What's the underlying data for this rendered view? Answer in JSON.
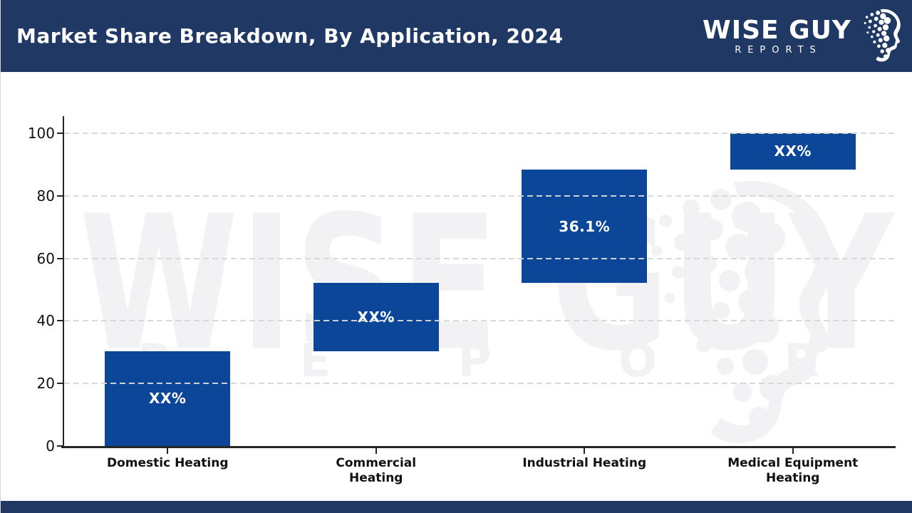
{
  "header": {
    "title": "Market Share Breakdown, By Application, 2024",
    "logo": {
      "line1": "WISE GUY",
      "line2": "REPORTS"
    }
  },
  "watermark": {
    "line1": "WISE GUY",
    "line2": "R E P O R T S"
  },
  "colors": {
    "header_bg": "#203864",
    "footer_bg": "#203864",
    "bar": "#0c4699",
    "bar_label": "#ffffff",
    "axis": "#262626",
    "gridline": "#d7d7d7",
    "watermark": "#f2f2f4"
  },
  "chart_data": {
    "type": "bar",
    "subtype": "waterfall",
    "title": "Market Share Breakdown, By Application, 2024",
    "categories": [
      "Domestic Heating",
      "Commercial Heating",
      "Industrial Heating",
      "Medical Equipment Heating"
    ],
    "segments": [
      {
        "category": "Domestic Heating",
        "start": 0,
        "end": 30.3,
        "label": "XX%"
      },
      {
        "category": "Commercial Heating",
        "start": 30.3,
        "end": 52.2,
        "label": "XX%"
      },
      {
        "category": "Industrial Heating",
        "start": 52.2,
        "end": 88.3,
        "label": "36.1%"
      },
      {
        "category": "Medical Equipment Heating",
        "start": 88.3,
        "end": 100.1,
        "label": "XX%"
      }
    ],
    "yticks": [
      0,
      20,
      40,
      60,
      80,
      100
    ],
    "ylim": [
      0,
      106
    ],
    "xlabel": "",
    "ylabel": "",
    "grid": "horizontal-dashed",
    "legend": "none"
  }
}
